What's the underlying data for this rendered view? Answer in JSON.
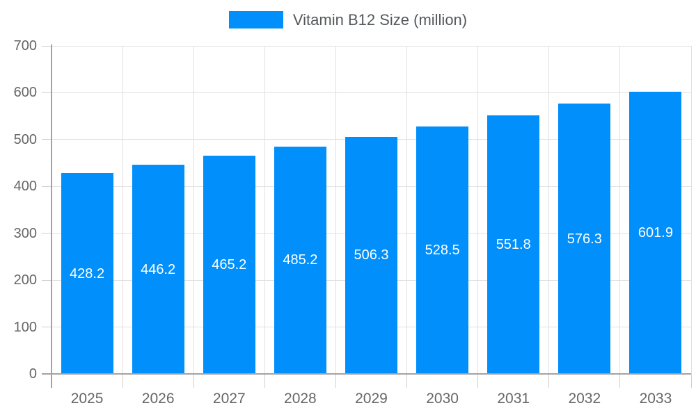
{
  "legend": {
    "label": "Vitamin B12 Size (million)"
  },
  "chart_data": {
    "type": "bar",
    "title": "Vitamin B12 Size (million)",
    "categories": [
      "2025",
      "2026",
      "2027",
      "2028",
      "2029",
      "2030",
      "2031",
      "2032",
      "2033"
    ],
    "series": [
      {
        "name": "Vitamin B12 Size (million)",
        "values": [
          428.2,
          446.2,
          465.2,
          485.2,
          506.3,
          528.5,
          551.8,
          576.3,
          601.9
        ]
      }
    ],
    "bar_labels": [
      "428.2",
      "446.2",
      "465.2",
      "485.2",
      "506.3",
      "528.5",
      "551.8",
      "576.3",
      "601.9"
    ],
    "xlabel": "",
    "ylabel": "",
    "ylim": [
      0,
      700
    ],
    "yticks": [
      0,
      100,
      200,
      300,
      400,
      500,
      600,
      700
    ],
    "grid": true,
    "legend_position": "top",
    "colors": {
      "bar": "#008FFB",
      "grid": "#e0e0e0",
      "tick": "#cfcfcf",
      "axis": "#a3a3a3",
      "axis_label": "#666666",
      "legend_text": "#55595c",
      "bar_label": "#ffffff",
      "background": "#ffffff"
    }
  }
}
